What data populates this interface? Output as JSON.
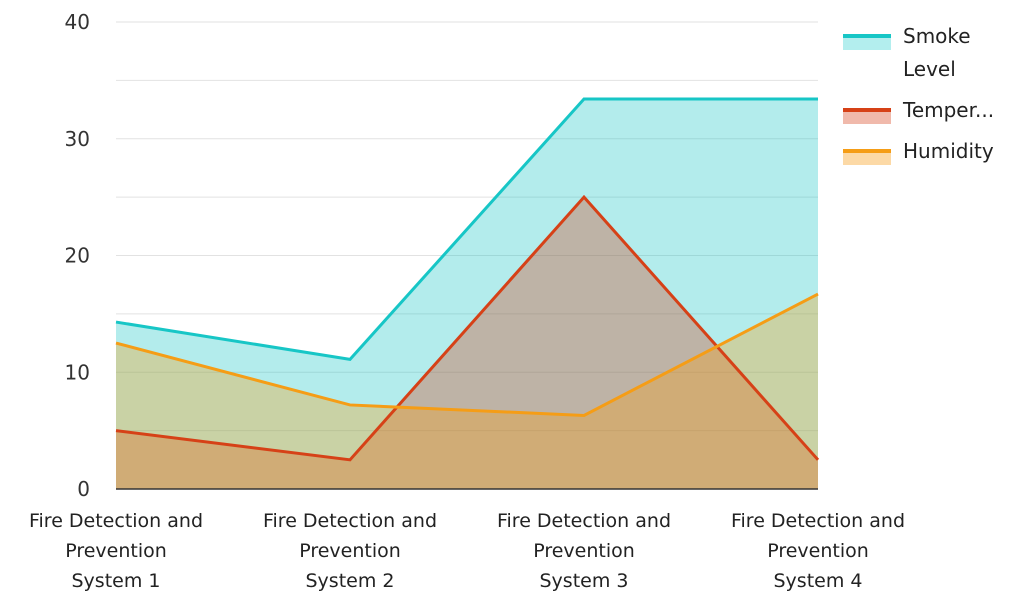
{
  "chart_data": {
    "type": "area",
    "title": "",
    "xlabel": "",
    "ylabel": "",
    "categories": [
      [
        "Fire Detection and",
        "Prevention",
        "System 1"
      ],
      [
        "Fire Detection and",
        "Prevention",
        "System 2"
      ],
      [
        "Fire Detection and",
        "Prevention",
        "System 3"
      ],
      [
        "Fire Detection and",
        "Prevention",
        "System 4"
      ]
    ],
    "ylim": [
      0,
      40
    ],
    "yticks": [
      "0",
      "10",
      "20",
      "30",
      "40"
    ],
    "grid": true,
    "legend_position": "right",
    "series": [
      {
        "name": "Smoke Level",
        "legend_lines": [
          "Smoke",
          "Level"
        ],
        "values": [
          14.3,
          11.1,
          33.4,
          33.4
        ],
        "color": "#17c6c6",
        "fill": "#b3eeee"
      },
      {
        "name": "Temper...",
        "legend_lines": [
          "Temper..."
        ],
        "values": [
          5.0,
          2.5,
          25.0,
          2.5
        ],
        "color": "#d64117",
        "fill": "#f0b9ab"
      },
      {
        "name": "Humidity",
        "legend_lines": [
          "Humidity"
        ],
        "values": [
          12.5,
          7.2,
          6.3,
          16.7
        ],
        "color": "#f59d16",
        "fill": "#fcd9a6"
      }
    ]
  }
}
